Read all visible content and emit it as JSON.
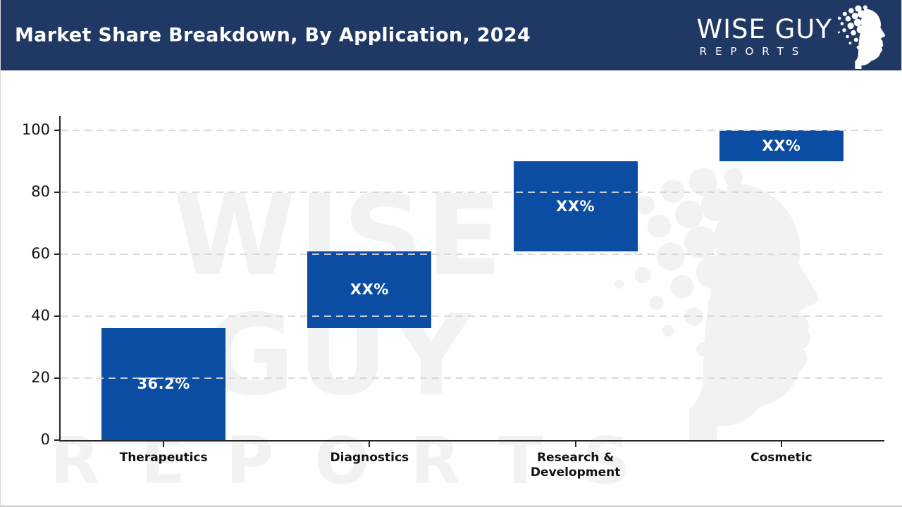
{
  "header": {
    "title": "Market Share Breakdown, By Application, 2024",
    "logo": {
      "line1": "WISE GUY",
      "line2": "REPORTS"
    }
  },
  "watermark": {
    "line1": "WISE GUY",
    "line2": "REPORTS"
  },
  "colors": {
    "header_bg": "#1f3864",
    "bar": "#0b4da2",
    "grid": "#d6d6d6",
    "axis": "#262626",
    "bar_label": "#ffffff",
    "watermark": "#f2f2f2"
  },
  "chart_data": {
    "type": "bar",
    "subtype": "waterfall",
    "title": "Market Share Breakdown, By Application, 2024",
    "categories": [
      "Therapeutics",
      "Diagnostics",
      "Research &\nDevelopment",
      "Cosmetic"
    ],
    "segments": [
      {
        "category": "Therapeutics",
        "start": 0,
        "end": 36.2,
        "label": "36.2%"
      },
      {
        "category": "Diagnostics",
        "start": 36.2,
        "end": 61,
        "label": "XX%"
      },
      {
        "category": "Research & Development",
        "start": 61,
        "end": 90,
        "label": "XX%"
      },
      {
        "category": "Cosmetic",
        "start": 90,
        "end": 100,
        "label": "XX%"
      }
    ],
    "xlabel": "",
    "ylabel": "",
    "ylim": [
      0,
      100
    ],
    "yticks": [
      0,
      20,
      40,
      60,
      80,
      100
    ],
    "grid": "horizontal-dashed",
    "legend": "none"
  }
}
